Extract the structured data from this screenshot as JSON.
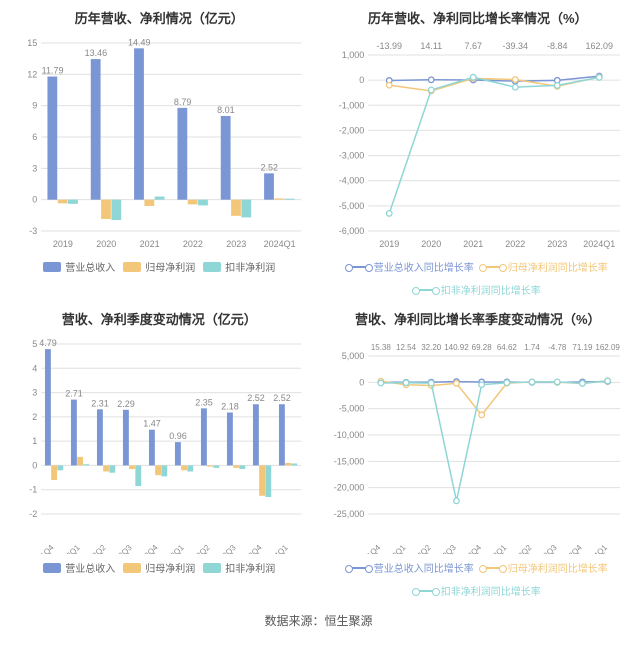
{
  "source_label": "数据来源：恒生聚源",
  "colors": {
    "blue": "#7b96d4",
    "orange": "#f3c77a",
    "teal": "#8fd6d6",
    "grid": "#e0e0e0",
    "axis_text": "#888888",
    "title": "#333333",
    "bg": "#ffffff"
  },
  "chart1": {
    "title": "历年营收、净利情况（亿元）",
    "type": "bar",
    "categories": [
      "2019",
      "2020",
      "2021",
      "2022",
      "2023",
      "2024Q1"
    ],
    "ylim": [
      -3,
      15
    ],
    "ytick_step": 3,
    "series": [
      {
        "name": "营业总收入",
        "color": "#7b96d4",
        "values": [
          11.79,
          13.46,
          14.49,
          8.79,
          8.01,
          2.52
        ]
      },
      {
        "name": "归母净利润",
        "color": "#f3c77a",
        "values": [
          -0.35,
          -1.85,
          -0.6,
          -0.45,
          -1.55,
          0.12
        ]
      },
      {
        "name": "扣非净利润",
        "color": "#8fd6d6",
        "values": [
          -0.4,
          -1.95,
          0.3,
          -0.55,
          -1.7,
          0.1
        ]
      }
    ],
    "value_labels": [
      11.79,
      13.46,
      14.49,
      8.79,
      8.01,
      2.52
    ]
  },
  "chart2": {
    "title": "历年营收、净利同比增长率情况（%）",
    "type": "line",
    "categories": [
      "2019",
      "2020",
      "2021",
      "2022",
      "2023",
      "2024Q1"
    ],
    "ylim": [
      -6000,
      1000
    ],
    "ytick_step": 1000,
    "series": [
      {
        "name": "营业总收入同比增长率",
        "color": "#7b96d4",
        "values": [
          -13.99,
          14.11,
          7.67,
          -39.34,
          -8.84,
          162.09
        ]
      },
      {
        "name": "归母净利润同比增长率",
        "color": "#f3c77a",
        "values": [
          -200,
          -430,
          68,
          25,
          -244,
          120
        ]
      },
      {
        "name": "扣非净利润同比增长率",
        "color": "#8fd6d6",
        "values": [
          -5300,
          -390,
          115,
          -280,
          -210,
          110
        ]
      }
    ],
    "top_labels": [
      "-13.99",
      "14.11",
      "7.67",
      "-39.34",
      "-8.84",
      "162.09"
    ]
  },
  "chart3": {
    "title": "营收、净利季度变动情况（亿元）",
    "type": "bar",
    "categories": [
      "2021Q4",
      "2022Q1",
      "2022Q2",
      "2022Q3",
      "2022Q4",
      "2023Q1",
      "2023Q2",
      "2023Q3",
      "2023Q4",
      "2024Q1"
    ],
    "ylim": [
      -2,
      5
    ],
    "ytick_step": 1,
    "series": [
      {
        "name": "营业总收入",
        "color": "#7b96d4",
        "values": [
          4.79,
          2.71,
          2.31,
          2.29,
          1.47,
          0.96,
          2.35,
          2.18,
          2.52,
          2.52
        ]
      },
      {
        "name": "归母净利润",
        "color": "#f3c77a",
        "values": [
          -0.6,
          0.35,
          -0.25,
          -0.15,
          -0.4,
          -0.2,
          -0.05,
          -0.1,
          -1.25,
          0.1
        ]
      },
      {
        "name": "扣非净利润",
        "color": "#8fd6d6",
        "values": [
          -0.2,
          0.05,
          -0.3,
          -0.85,
          -0.45,
          -0.25,
          -0.1,
          -0.15,
          -1.3,
          0.08
        ]
      }
    ],
    "value_labels": [
      4.79,
      2.71,
      2.31,
      2.29,
      1.47,
      0.96,
      2.35,
      2.18,
      2.52,
      2.52
    ]
  },
  "chart4": {
    "title": "营收、净利同比增长率季度变动情况（%）",
    "type": "line",
    "categories": [
      "2021Q4",
      "2022Q1",
      "2022Q2",
      "2022Q3",
      "2022Q4",
      "2023Q1",
      "2023Q2",
      "2023Q3",
      "2023Q4",
      "2024Q1"
    ],
    "ylim": [
      -25000,
      5000
    ],
    "ytick_step": 5000,
    "series": [
      {
        "name": "营业总收入同比增长率",
        "color": "#7b96d4",
        "values": [
          15.38,
          12.54,
          32.2,
          140.92,
          69.28,
          64.62,
          1.74,
          -4.78,
          71.19,
          162.09
        ]
      },
      {
        "name": "归母净利润同比增长率",
        "color": "#f3c77a",
        "values": [
          220,
          -450,
          -600,
          -200,
          -6200,
          -150,
          80,
          30,
          -210,
          300
        ]
      },
      {
        "name": "扣非净利润同比增长率",
        "color": "#8fd6d6",
        "values": [
          -120,
          -80,
          -140,
          -22500,
          -450,
          -70,
          65,
          82,
          -190,
          260
        ]
      }
    ],
    "top_labels": [
      "15.38",
      "12.54",
      "32.20",
      "140.92",
      "69.28",
      "64.62",
      "1.74",
      "-4.78",
      "71.19",
      "162.09"
    ]
  },
  "legends": {
    "bar": [
      "营业总收入",
      "归母净利润",
      "扣非净利润"
    ],
    "line": [
      "营业总收入同比增长率",
      "归母净利润同比增长率",
      "扣非净利润同比增长率"
    ]
  }
}
